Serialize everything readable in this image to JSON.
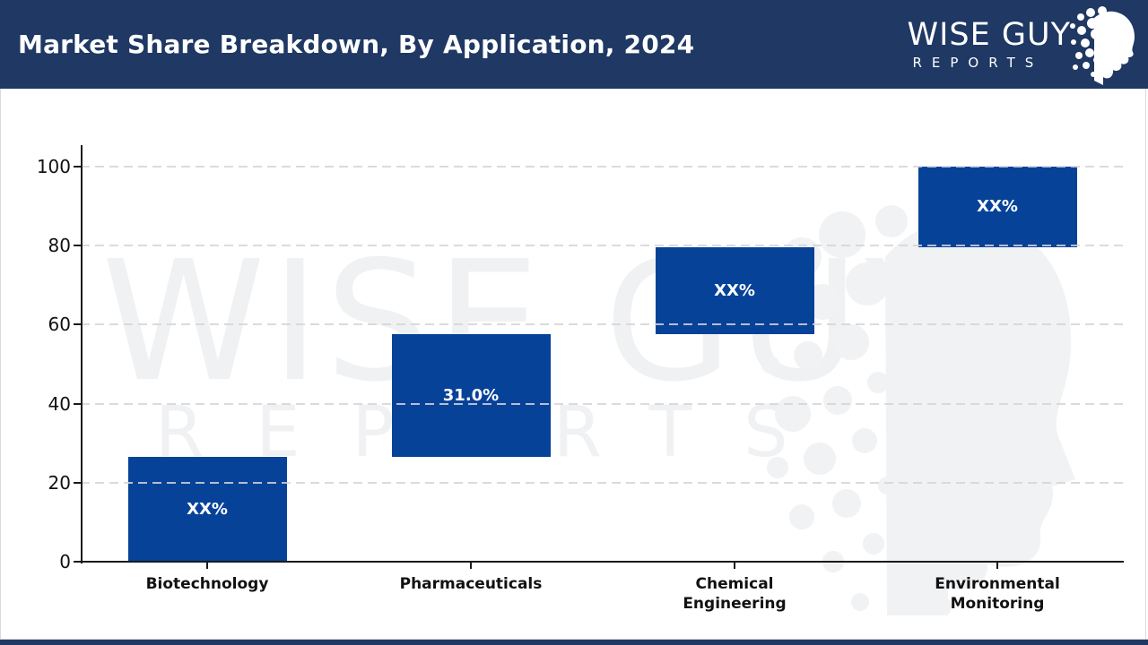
{
  "header": {
    "title": "Market Share Breakdown, By Application, 2024",
    "bg_color": "#1f3864",
    "brand": {
      "line1": "WISE GUY",
      "line2": "REPORTS"
    }
  },
  "watermark": {
    "line1": "WISE GUY",
    "line2": "REPORTS"
  },
  "chart_data": {
    "type": "bar",
    "variant": "waterfall",
    "categories": [
      [
        "Biotechnology"
      ],
      [
        "Pharmaceuticals"
      ],
      [
        "Chemical",
        "Engineering"
      ],
      [
        "Environmental",
        "Monitoring"
      ]
    ],
    "segments": [
      {
        "start": 0,
        "end": 26.5,
        "value": 26.5,
        "label": "XX%"
      },
      {
        "start": 26.5,
        "end": 57.5,
        "value": 31.0,
        "label": "31.0%"
      },
      {
        "start": 57.5,
        "end": 79.6,
        "value": 22.1,
        "label": "XX%"
      },
      {
        "start": 79.6,
        "end": 100,
        "value": 20.4,
        "label": "XX%"
      }
    ],
    "ylim": [
      0,
      100
    ],
    "yticks": [
      0,
      20,
      40,
      60,
      80,
      100
    ],
    "grid": {
      "axis": "y",
      "style": "dashed",
      "color": "#d9d9d9",
      "drawn_over_bars": true
    },
    "legend": "none",
    "bar_color": "#074299",
    "bar_label_color": "#ffffff",
    "axis_color": "#1a1a1a",
    "tick_label_color": "#111111"
  }
}
